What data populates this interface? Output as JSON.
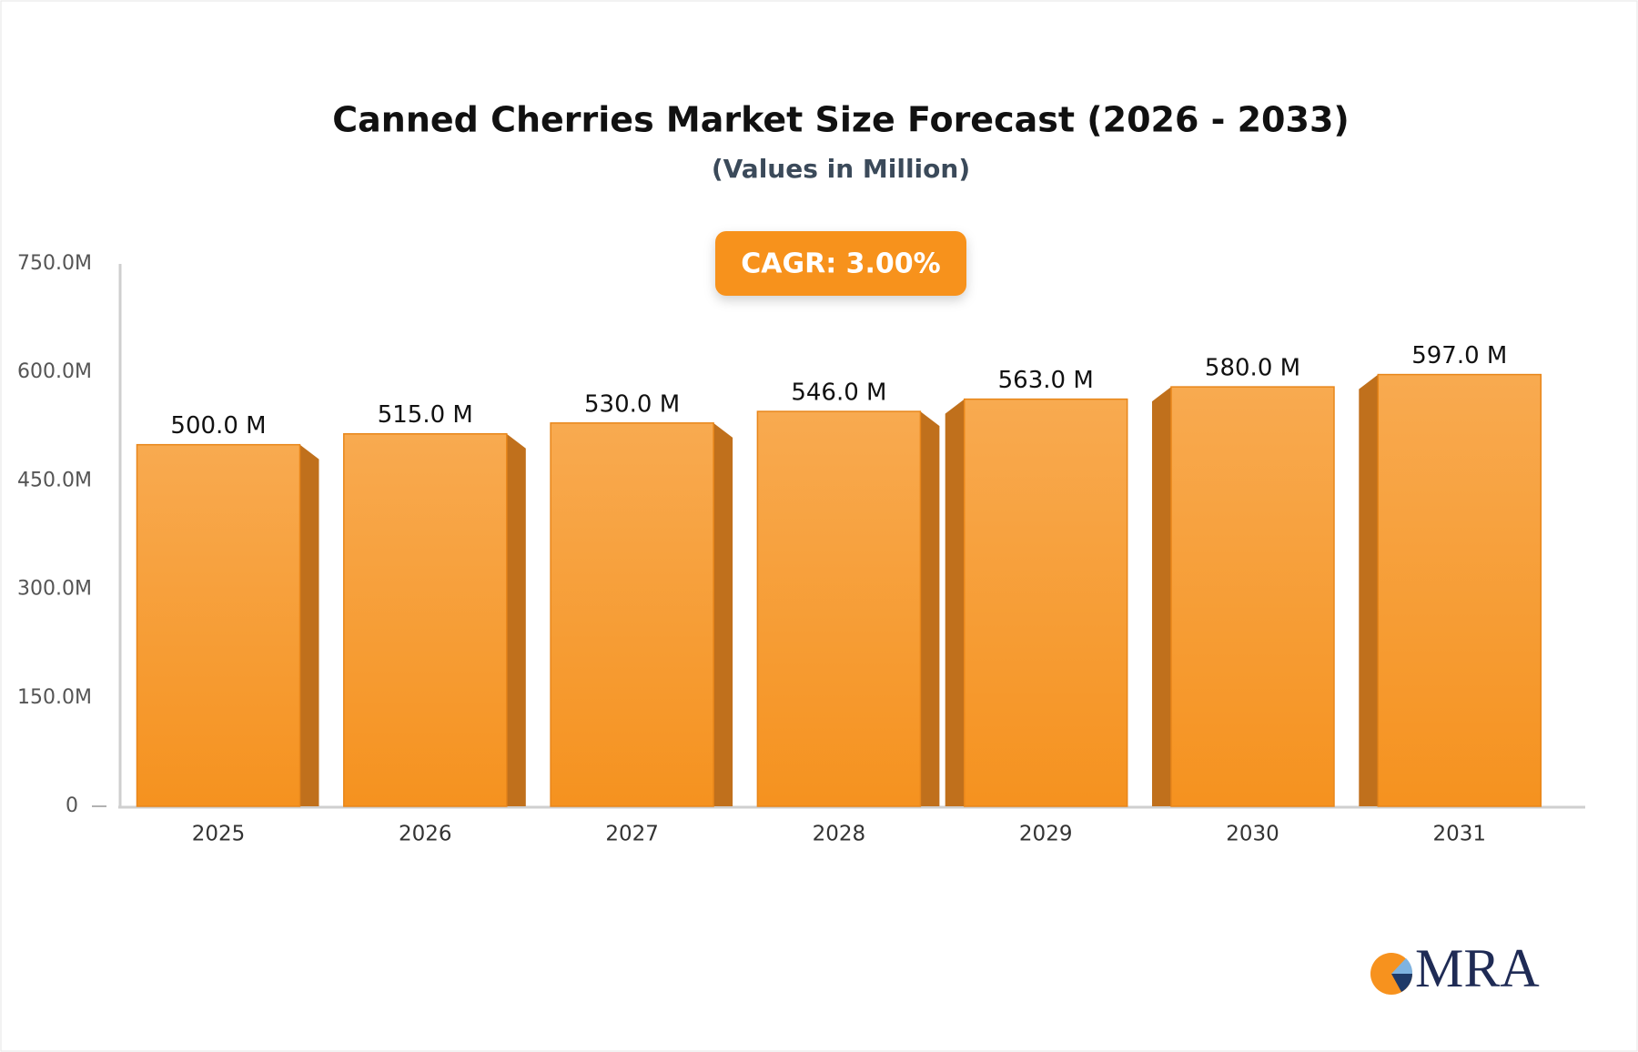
{
  "chart_data": {
    "type": "bar",
    "title": "Canned Cherries Market Size Forecast (2026 - 2033)",
    "subtitle": "(Values in Million)",
    "annotation": "CAGR: 3.00%",
    "categories": [
      "2025",
      "2026",
      "2027",
      "2028",
      "2029",
      "2030",
      "2031"
    ],
    "values": [
      500,
      515,
      530,
      546,
      563,
      580,
      597
    ],
    "value_labels": [
      "500.0 M",
      "515.0 M",
      "530.0 M",
      "546.0 M",
      "563.0 M",
      "580.0 M",
      "597.0 M"
    ],
    "color": "#f7a03c",
    "ylim": [
      0,
      750
    ],
    "yticks": [
      0,
      {
        "value": 150,
        "label": "150.0M"
      },
      {
        "value": 300,
        "label": "300.0M"
      },
      {
        "value": 450,
        "label": "450.0M"
      },
      {
        "value": 600,
        "label": "600.0M"
      },
      {
        "value": 750,
        "label": "750.0M"
      }
    ],
    "grid": false
  },
  "logo": "MRA"
}
